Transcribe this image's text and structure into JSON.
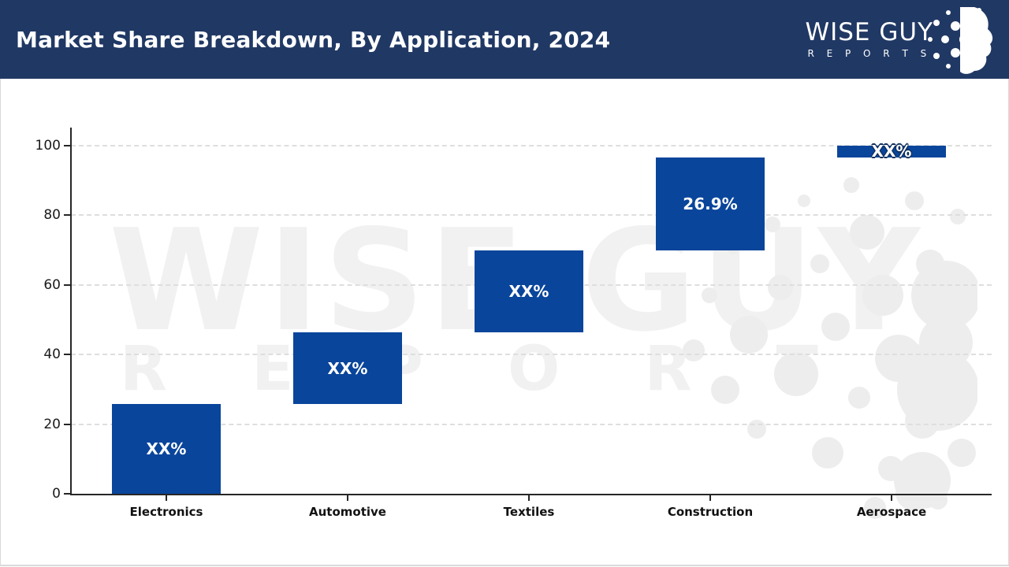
{
  "header": {
    "title": "Market Share Breakdown, By Application, 2024"
  },
  "logo": {
    "name": "WISE GUY",
    "subtitle": "R E P O R T S"
  },
  "watermark": {
    "line1": "WISE GUY",
    "line2": "R E P O R T S"
  },
  "chart_data": {
    "type": "bar",
    "subtype": "waterfall",
    "title": "Market Share Breakdown, By Application, 2024",
    "categories": [
      "Electronics",
      "Automotive",
      "Textiles",
      "Construction",
      "Aerospace"
    ],
    "segments": [
      {
        "category": "Electronics",
        "start": 0,
        "end": 25.8,
        "label": "XX%"
      },
      {
        "category": "Automotive",
        "start": 25.8,
        "end": 46.3,
        "label": "XX%"
      },
      {
        "category": "Textiles",
        "start": 46.3,
        "end": 69.8,
        "label": "XX%"
      },
      {
        "category": "Construction",
        "start": 69.8,
        "end": 96.7,
        "label": "26.9%"
      },
      {
        "category": "Aerospace",
        "start": 96.7,
        "end": 100,
        "label": "XX%"
      }
    ],
    "ylabel": "",
    "xlabel": "",
    "ylim": [
      0,
      105
    ],
    "yticks": [
      0,
      20,
      40,
      60,
      80,
      100
    ],
    "grid": "horizontal-dashed",
    "legend": false
  },
  "colors": {
    "header_bg": "#203864",
    "bar": "#09459b",
    "grid": "#dedede",
    "axis": "#262626",
    "bar_label": "#ffffff",
    "watermark": "#f1f1f1"
  }
}
